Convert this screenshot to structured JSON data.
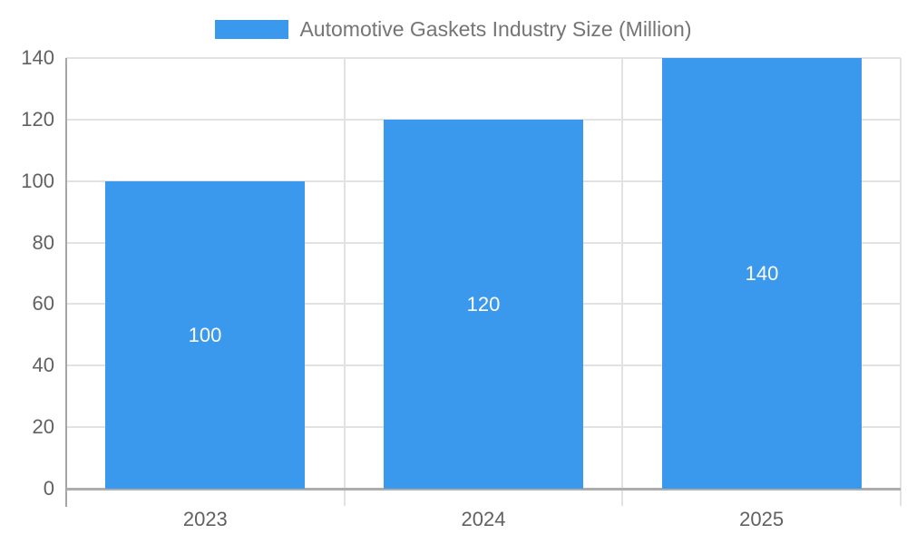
{
  "chart_data": {
    "type": "bar",
    "title": "Automotive Gaskets Industry Size (Million)",
    "series_name": "Automotive Gaskets Industry Size (Million)",
    "categories": [
      "2023",
      "2024",
      "2025"
    ],
    "values": [
      100,
      120,
      140
    ],
    "bar_labels": [
      "100",
      "120",
      "140"
    ],
    "xlabel": "",
    "ylabel": "",
    "ylim": [
      0,
      140
    ],
    "yticks": [
      0,
      20,
      40,
      60,
      80,
      100,
      120,
      140
    ],
    "grid": true,
    "legend_position": "top"
  },
  "legend": {
    "label": "Automotive Gaskets Industry Size (Million)"
  },
  "colors": {
    "background": "#FFFFFF",
    "bar": "#3A99EC",
    "grid": "#E2E2E2",
    "axis": "#A5A5A5",
    "baseline": "#ADADAD",
    "tick_label": "#616161",
    "legend_text": "#757575",
    "bar_label": "#FFFFFF"
  }
}
